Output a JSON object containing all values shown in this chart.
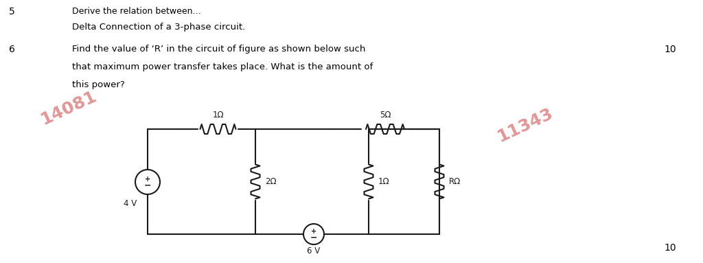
{
  "bg_color": "#ffffff",
  "text_color": "#000000",
  "line_color": "#1a1a1a",
  "resistor_color": "#1a1a1a",
  "watermark_color1": "#d44040",
  "watermark_color2": "#c84040",
  "title_top": "Delta Connection of a 3-phase circuit.",
  "q_number": "5",
  "q6_number": "6",
  "q6_mark": "10",
  "q6_text_line1": "Find the value of ‘R’ in the circuit of figure as shown below such",
  "q6_text_line2": "that maximum power transfer takes place. What is the amount of",
  "q6_text_line3": "this power?",
  "watermark1": "14081",
  "watermark2": "11343",
  "label_1ohm_top": "1Ω",
  "label_5ohm_top": "5Ω",
  "label_2ohm": "2Ω",
  "label_1ohm_mid": "1Ω",
  "label_R": "RΩ",
  "label_4V": "4 V",
  "label_6V": "6 V",
  "bottom_mark": "10"
}
